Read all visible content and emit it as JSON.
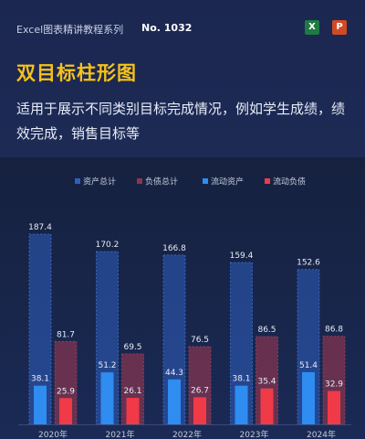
{
  "header": {
    "series_name": "Excel图表精讲教程系列",
    "issue_no": "No. 1032",
    "title": "双目标柱形图",
    "subtitle": "适用于展示不同类别目标完成情况，例如学生成绩，绩效完成，销售目标等",
    "icons": [
      "excel-icon",
      "powerpoint-icon"
    ],
    "excel_label": "X",
    "ppt_label": "P"
  },
  "chart_data": {
    "type": "bar",
    "categories": [
      "2020年",
      "2021年",
      "2022年",
      "2023年",
      "2024年"
    ],
    "series": [
      {
        "name": "资产总计",
        "values": [
          187.4,
          170.2,
          166.8,
          159.4,
          152.6
        ],
        "color": "#2f5fbf"
      },
      {
        "name": "负债总计",
        "values": [
          81.7,
          69.5,
          76.5,
          86.5,
          86.8
        ],
        "color": "#8a3550"
      },
      {
        "name": "流动资产",
        "values": [
          38.1,
          51.2,
          44.3,
          38.1,
          51.4
        ],
        "color": "#2f8cf0"
      },
      {
        "name": "流动负债",
        "values": [
          25.9,
          26.1,
          26.7,
          35.4,
          32.9
        ],
        "color": "#f03a47"
      }
    ],
    "legend_position": "top",
    "grid": false,
    "ylim": [
      0,
      200
    ]
  }
}
